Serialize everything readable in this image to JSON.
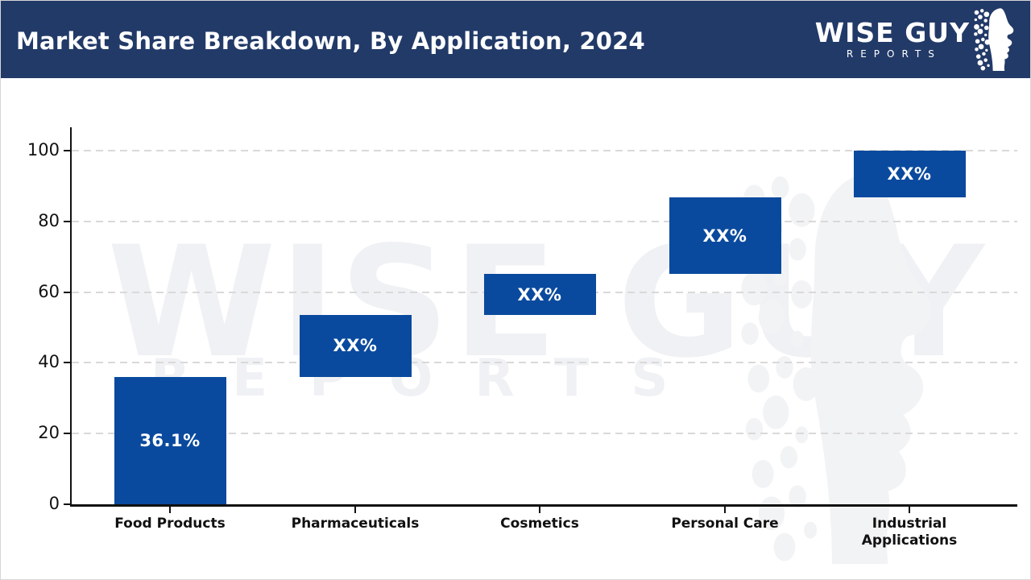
{
  "header": {
    "title": "Market Share Breakdown, By Application, 2024",
    "logo": {
      "line1": "WISE GUY",
      "line2": "REPORTS"
    }
  },
  "watermark": {
    "line1": "WISE GUY",
    "line2": "REPORTS"
  },
  "colors": {
    "header_navy": "#223a68",
    "bar_blue": "#0a4a9e",
    "grid": "#d9d9d9",
    "axis": "#111111",
    "watermark_gray": "#f0f1f4",
    "bar_label_text": "#ffffff"
  },
  "chart_data": {
    "type": "bar",
    "variant": "waterfall",
    "title": "Market Share Breakdown, By Application, 2024",
    "categories": [
      "Food Products",
      "Pharmaceuticals",
      "Cosmetics",
      "Personal Care",
      "Industrial Applications"
    ],
    "series": [
      {
        "name": "Food Products",
        "start": 0,
        "end": 36.1,
        "label": "36.1%"
      },
      {
        "name": "Pharmaceuticals",
        "start": 36.1,
        "end": 53.5,
        "label": "XX%"
      },
      {
        "name": "Cosmetics",
        "start": 53.5,
        "end": 65.1,
        "label": "XX%"
      },
      {
        "name": "Personal Care",
        "start": 65.1,
        "end": 86.8,
        "label": "XX%"
      },
      {
        "name": "Industrial Applications",
        "start": 86.8,
        "end": 100,
        "label": "XX%"
      }
    ],
    "ylim": [
      0,
      106
    ],
    "yticks": [
      0,
      20,
      40,
      60,
      80,
      100
    ],
    "xlabel": "",
    "ylabel": "",
    "grid": "horizontal-dashed",
    "legend": false,
    "xlabel_wrap": [
      false,
      false,
      false,
      false,
      true
    ]
  }
}
